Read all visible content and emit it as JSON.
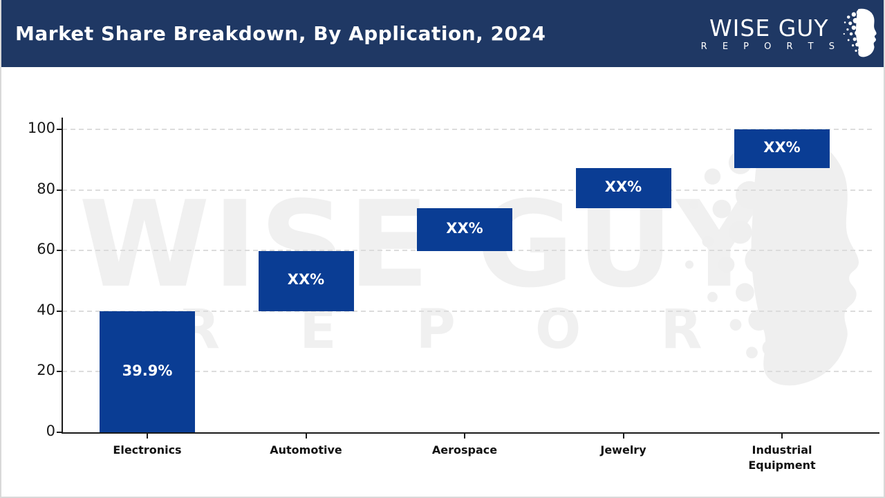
{
  "header": {
    "title": "Market Share Breakdown, By Application, 2024",
    "logo": {
      "line1": "WISE GUY",
      "line2": "R E P O R T S"
    }
  },
  "watermark": {
    "line1": "WISE GUY",
    "line2": "R E P O R T S"
  },
  "chart_data": {
    "type": "bar",
    "subtype": "waterfall",
    "title": "Market Share Breakdown, By Application, 2024",
    "categories": [
      "Electronics",
      "Automotive",
      "Aerospace",
      "Jewelry",
      "Industrial Equipment"
    ],
    "segments": [
      {
        "category": "Electronics",
        "start": 0,
        "end": 39.9,
        "label": "39.9%"
      },
      {
        "category": "Automotive",
        "start": 39.9,
        "end": 59.9,
        "label": "XX%"
      },
      {
        "category": "Aerospace",
        "start": 59.9,
        "end": 74.0,
        "label": "XX%"
      },
      {
        "category": "Jewelry",
        "start": 74.0,
        "end": 87.3,
        "label": "XX%"
      },
      {
        "category": "Industrial Equipment",
        "start": 87.3,
        "end": 100.0,
        "label": "XX%"
      }
    ],
    "ylim": [
      0,
      100
    ],
    "yticks": [
      0,
      20,
      40,
      60,
      80,
      100
    ],
    "grid": "dashed-horizontal",
    "legend": "none",
    "bar_color": "#0a3d94",
    "bar_label_color": "#ffffff",
    "xlabel": "",
    "ylabel": ""
  },
  "colors": {
    "header_bg": "#1f3864",
    "bar": "#0a3d94",
    "grid": "#dcdcdc",
    "axis": "#1a1a1a",
    "watermark": "#f0f0f0",
    "frame_border": "#d9d9d9"
  }
}
